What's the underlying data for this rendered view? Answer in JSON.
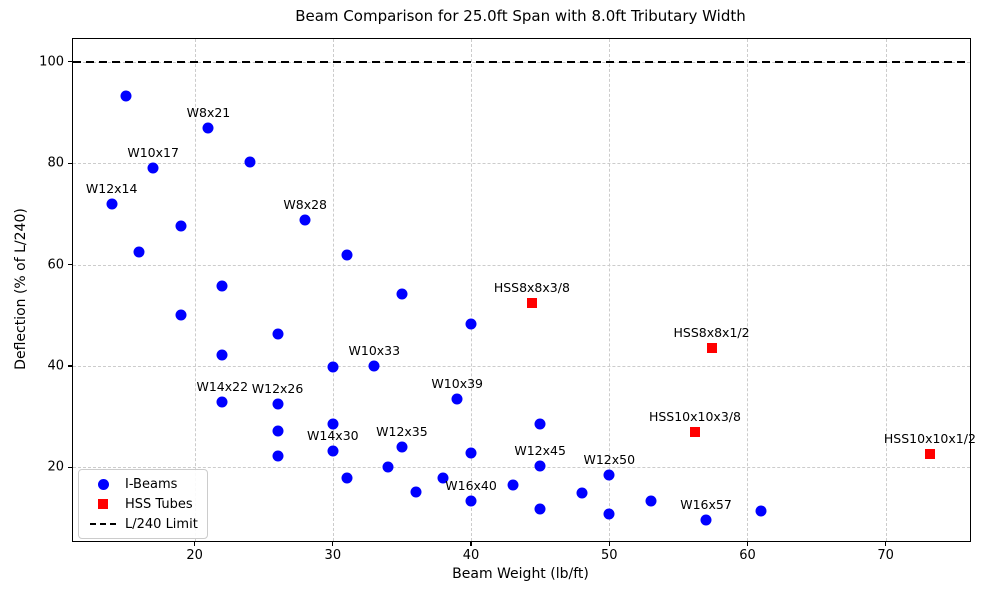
{
  "chart_data": {
    "type": "scatter",
    "title": "Beam Comparison for 25.0ft Span with 8.0ft Tributary Width",
    "xlabel": "Beam Weight (lb/ft)",
    "ylabel": "Deflection (% of L/240)",
    "xlim": [
      11.2,
      76.1
    ],
    "ylim": [
      5.5,
      104.5
    ],
    "x_ticks": [
      20,
      30,
      40,
      50,
      60,
      70
    ],
    "y_ticks": [
      20,
      40,
      60,
      80,
      100
    ],
    "grid": true,
    "legend": {
      "position": "lower-left",
      "items": [
        "I-Beams",
        "HSS Tubes",
        "L/240 Limit"
      ]
    },
    "limit_line": {
      "y": 100,
      "label": "L/240 Limit",
      "color": "#000000",
      "style": "dashed"
    },
    "colors": {
      "i_beams": "#0000ff",
      "hss_tubes": "#ff0000",
      "limit": "#000000",
      "grid": "#cccccc"
    },
    "series": [
      {
        "name": "I-Beams",
        "marker": "circle",
        "color_key": "i_beams",
        "points": [
          {
            "x": 15,
            "y": 93.2
          },
          {
            "x": 21,
            "y": 86.9,
            "label": "W8x21"
          },
          {
            "x": 24,
            "y": 80.3
          },
          {
            "x": 17,
            "y": 79.0,
            "label": "W10x17"
          },
          {
            "x": 14,
            "y": 72.0,
            "label": "W12x14"
          },
          {
            "x": 28,
            "y": 68.8,
            "label": "W8x28"
          },
          {
            "x": 19,
            "y": 67.6
          },
          {
            "x": 16,
            "y": 62.4
          },
          {
            "x": 31,
            "y": 62.0
          },
          {
            "x": 22,
            "y": 55.8
          },
          {
            "x": 35,
            "y": 54.2
          },
          {
            "x": 19,
            "y": 50.0
          },
          {
            "x": 40,
            "y": 48.2
          },
          {
            "x": 26,
            "y": 46.3
          },
          {
            "x": 22,
            "y": 42.1
          },
          {
            "x": 33,
            "y": 40.0,
            "label": "W10x33"
          },
          {
            "x": 30,
            "y": 39.8
          },
          {
            "x": 39,
            "y": 33.5,
            "label": "W10x39"
          },
          {
            "x": 22,
            "y": 33.0,
            "label": "W14x22"
          },
          {
            "x": 26,
            "y": 32.6,
            "label": "W12x26"
          },
          {
            "x": 30,
            "y": 28.5
          },
          {
            "x": 45,
            "y": 28.5
          },
          {
            "x": 26,
            "y": 27.2
          },
          {
            "x": 35,
            "y": 24.0,
            "label": "W12x35"
          },
          {
            "x": 30,
            "y": 23.2,
            "label": "W14x30"
          },
          {
            "x": 40,
            "y": 22.8
          },
          {
            "x": 26,
            "y": 22.2
          },
          {
            "x": 45,
            "y": 20.2,
            "label": "W12x45"
          },
          {
            "x": 34,
            "y": 20.0
          },
          {
            "x": 50,
            "y": 18.5,
            "label": "W12x50"
          },
          {
            "x": 38,
            "y": 18.0
          },
          {
            "x": 31,
            "y": 17.9
          },
          {
            "x": 43,
            "y": 16.5
          },
          {
            "x": 36,
            "y": 15.2
          },
          {
            "x": 48,
            "y": 15.0
          },
          {
            "x": 53,
            "y": 13.3
          },
          {
            "x": 40,
            "y": 13.3,
            "label": "W16x40"
          },
          {
            "x": 45,
            "y": 11.8
          },
          {
            "x": 61,
            "y": 11.5
          },
          {
            "x": 50,
            "y": 10.8
          },
          {
            "x": 57,
            "y": 9.7,
            "label": "W16x57"
          }
        ]
      },
      {
        "name": "HSS Tubes",
        "marker": "square",
        "color_key": "hss_tubes",
        "points": [
          {
            "x": 44.4,
            "y": 52.4,
            "label": "HSS8x8x3/8"
          },
          {
            "x": 57.4,
            "y": 43.5,
            "label": "HSS8x8x1/2"
          },
          {
            "x": 56.2,
            "y": 27.0,
            "label": "HSS10x10x3/8"
          },
          {
            "x": 73.2,
            "y": 22.6,
            "label": "HSS10x10x1/2"
          }
        ]
      }
    ]
  }
}
